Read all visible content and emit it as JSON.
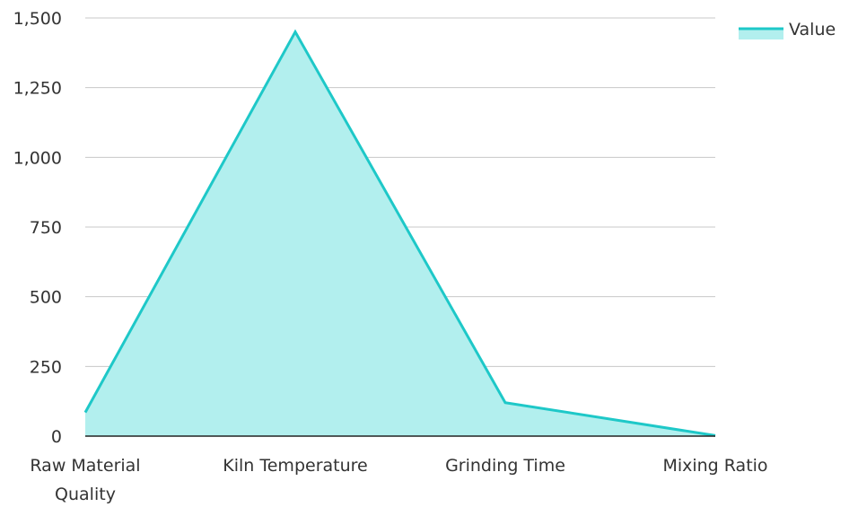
{
  "chart_data": {
    "type": "area",
    "categories": [
      "Raw Material Quality",
      "Kiln Temperature",
      "Grinding Time",
      "Mixing Ratio"
    ],
    "category_lines": [
      [
        "Raw Material",
        "Quality"
      ],
      [
        "Kiln Temperature"
      ],
      [
        "Grinding Time"
      ],
      [
        "Mixing Ratio"
      ]
    ],
    "series": [
      {
        "name": "Value",
        "values": [
          85,
          1450,
          120,
          2
        ]
      }
    ],
    "title": "",
    "xlabel": "",
    "ylabel": "",
    "ylim": [
      0,
      1500
    ],
    "yticks": [
      0,
      250,
      500,
      750,
      1000,
      1250,
      1500
    ],
    "ytick_labels": [
      "0",
      "250",
      "500",
      "750",
      "1,000",
      "1,250",
      "1,500"
    ],
    "grid": true,
    "legend_position": "top-right",
    "colors": {
      "line": "#1ec8c8",
      "fill": "#b2efee"
    }
  }
}
